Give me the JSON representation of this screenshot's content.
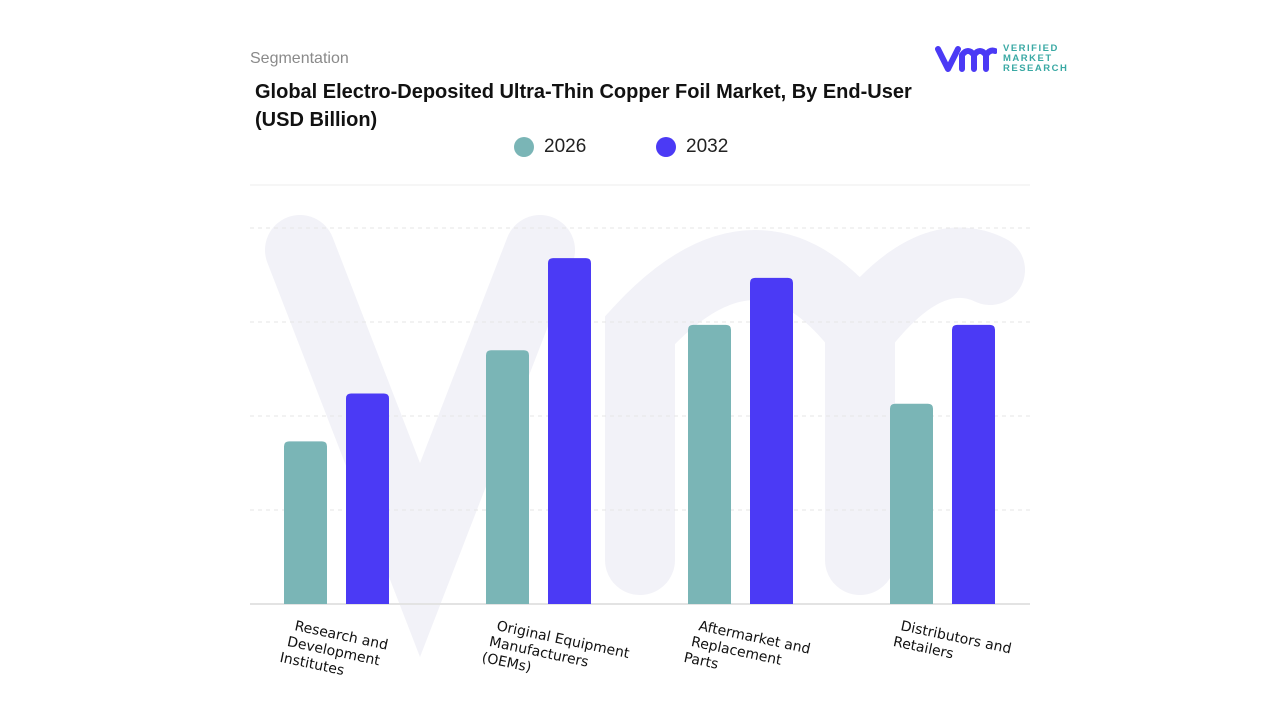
{
  "header": {
    "segment_label": "Segmentation",
    "title": "Global Electro-Deposited Ultra-Thin Copper Foil Market, By End-User (USD Billion)"
  },
  "logo": {
    "lines": [
      "VERIFIED",
      "MARKET",
      "RESEARCH"
    ],
    "mark": "vmr"
  },
  "colors": {
    "2026": "#7ab5b6",
    "2032": "#4b3af5"
  },
  "chart_data": {
    "type": "bar",
    "title": "Global Electro-Deposited Ultra-Thin Copper Foil Market, By End-User (USD Billion)",
    "categories": [
      [
        "Research and",
        "Development",
        "Institutes"
      ],
      [
        "Original Equipment",
        "Manufacturers",
        "(OEMs)"
      ],
      [
        "Aftermarket  and",
        "Replacement",
        "Parts"
      ],
      [
        "Distributors and",
        "Retailers"
      ]
    ],
    "series": [
      {
        "name": "2026",
        "values": [
          1.73,
          2.7,
          2.97,
          2.13
        ]
      },
      {
        "name": "2032",
        "values": [
          2.24,
          3.68,
          3.47,
          2.97
        ]
      }
    ],
    "ylim": [
      0,
      4
    ],
    "grid": true,
    "y_tick_labels_shown": false,
    "legend_placement": "top-center"
  }
}
